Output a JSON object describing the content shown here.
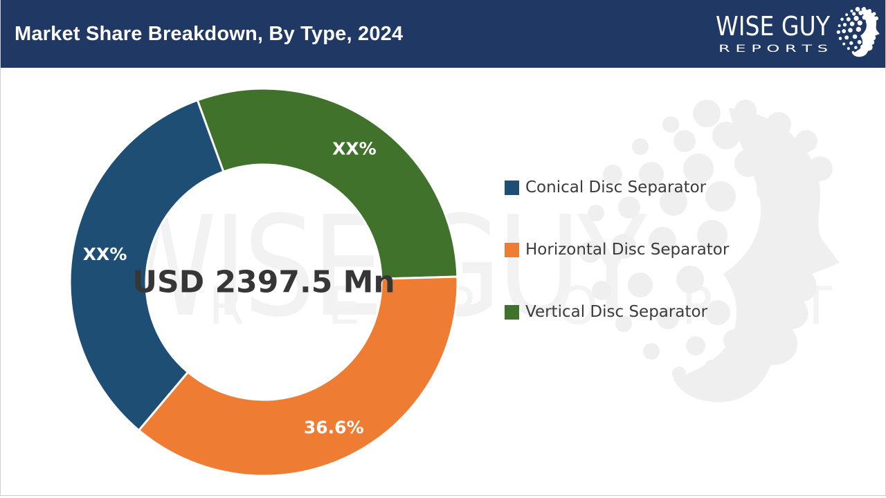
{
  "header": {
    "title": "Market Share Breakdown, By Type, 2024",
    "logo": {
      "line1": "WISE GUY",
      "line2": "R E P O R T S"
    }
  },
  "watermark": {
    "wordmark": "WISE GUY",
    "reports": "R E P O R T S"
  },
  "chart_data": {
    "type": "pie",
    "subtype": "donut",
    "title": "Market Share Breakdown, By Type, 2024",
    "center_text": "USD 2397.5 Mn",
    "start_angle_deg": -20,
    "segments": [
      {
        "name": "Vertical Disc Separator",
        "label": "XX%",
        "percent": 30.1,
        "color": "#41722B"
      },
      {
        "name": "Horizontal Disc Separator",
        "label": "36.6%",
        "percent": 36.6,
        "color": "#EE7D33"
      },
      {
        "name": "Conical Disc Separator",
        "label": "XX%",
        "percent": 33.3,
        "color": "#1F4E74"
      }
    ],
    "legend": [
      {
        "label": "Conical Disc Separator",
        "color": "#1F4E74"
      },
      {
        "label": "Horizontal Disc Separator",
        "color": "#EE7D33"
      },
      {
        "label": "Vertical Disc Separator",
        "color": "#41722B"
      }
    ],
    "legend_position": "right",
    "colors": {
      "header_bar": "#1F3864",
      "background": "#FFFFFF"
    }
  }
}
